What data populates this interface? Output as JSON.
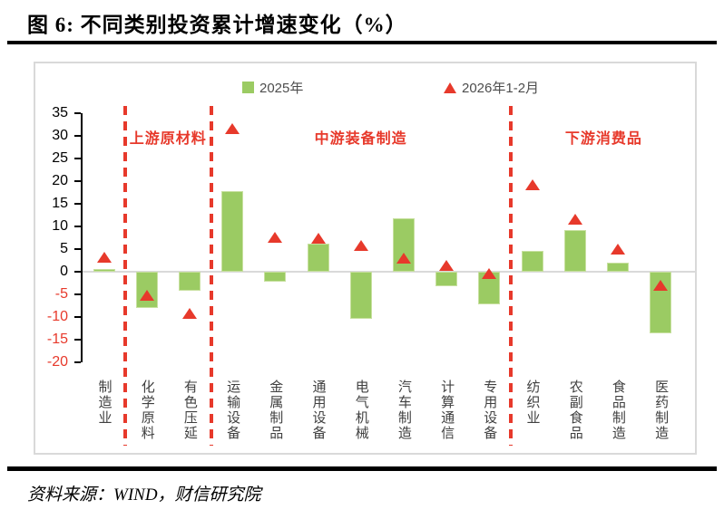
{
  "title": "图 6:  不同类别投资累计增速变化（%）",
  "source": "资料来源：WIND，财信研究院",
  "colors": {
    "bar_green": "#9BCB63",
    "marker_red": "#E7392B",
    "negative_tick_red": "#E7392B",
    "axis_black": "#000000",
    "gridline_gray": "#D9D9D9",
    "label_gray": "#404040"
  },
  "legend": {
    "items": [
      {
        "label": "2025年",
        "marker": "green-square"
      },
      {
        "label": "2026年1-2月",
        "marker": "red-triangle"
      }
    ]
  },
  "sections": [
    {
      "label": "上游原材料",
      "start_index": 1,
      "end_index": 2
    },
    {
      "label": "中游装备制造",
      "start_index": 3,
      "end_index": 9
    },
    {
      "label": "下游消费品",
      "start_index": 10,
      "end_index": 13
    }
  ],
  "chart_data": {
    "type": "bar",
    "title": "图 6:  不同类别投资累计增速变化（%）",
    "categories": [
      "制造业",
      "化学原料",
      "有色压延",
      "运输设备",
      "金属制品",
      "通用设备",
      "电气机械",
      "汽车制造",
      "计算通信",
      "专用设备",
      "纺织业",
      "农副食品",
      "食品制造",
      "医药制造"
    ],
    "series": [
      {
        "name": "2025年",
        "type": "bar",
        "color": "#9BCB63",
        "values": [
          0.6,
          -7.9,
          -4.1,
          17.8,
          -2.1,
          6.2,
          -10.3,
          11.9,
          -3.1,
          -7.2,
          4.6,
          9.3,
          2.1,
          -13.6
        ]
      },
      {
        "name": "2026年1-2月",
        "type": "scatter-triangle",
        "color": "#E7392B",
        "values": [
          3.1,
          -5.4,
          -9.3,
          31.5,
          7.5,
          7.2,
          5.7,
          2.8,
          1.3,
          -0.5,
          19.0,
          11.4,
          4.9,
          -3.1
        ]
      }
    ],
    "ylim": [
      -20,
      35
    ],
    "ytick_step": 5,
    "grid": "zero-line-only",
    "legend_position": "top-center",
    "dividers_after_category_index": [
      0,
      2,
      9
    ]
  }
}
